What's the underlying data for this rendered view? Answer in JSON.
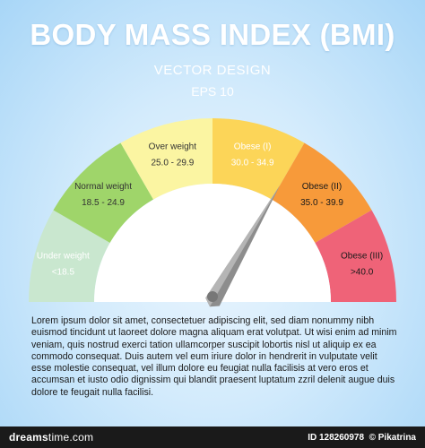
{
  "header": {
    "title": "BODY MASS INDEX (BMI)",
    "subtitle": "VECTOR DESIGN",
    "eps": "EPS 10"
  },
  "gauge": {
    "needle_value": 30,
    "range": [
      0,
      45
    ],
    "segments": [
      {
        "name": "Under weight",
        "range": "<18.5",
        "color": "#c9e7cf",
        "text_color": "#ffffff"
      },
      {
        "name": "Normal weight",
        "range": "18.5 - 24.9",
        "color": "#9fd56a",
        "text_color": "#333333"
      },
      {
        "name": "Over weight",
        "range": "25.0 - 29.9",
        "color": "#fbf5a2",
        "text_color": "#333333"
      },
      {
        "name": "Obese (I)",
        "range": "30.0 - 34.9",
        "color": "#fcd558",
        "text_color": "#ffffff"
      },
      {
        "name": "Obese (II)",
        "range": "35.0 - 39.9",
        "color": "#f79a3a",
        "text_color": "#1a1a1a"
      },
      {
        "name": "Obese (III)",
        "range": ">40.0",
        "color": "#ef6378",
        "text_color": "#1a1a1a"
      }
    ]
  },
  "body_text": "Lorem ipsum dolor sit amet, consectetuer adipiscing elit, sed diam nonummy nibh euismod tincidunt ut laoreet dolore magna aliquam erat volutpat. Ut wisi enim ad minim veniam, quis nostrud exerci tation ullamcorper suscipit lobortis nisl ut aliquip ex ea commodo consequat. Duis autem vel eum iriure dolor in hendrerit in vulputate velit esse molestie consequat, vel illum dolore eu feugiat nulla facilisis at vero eros et accumsan et iusto odio dignissim qui blandit praesent luptatum zzril delenit augue duis dolore te feugait nulla facilisi.",
  "footer": {
    "brand_bold": "dreams",
    "brand_light": "time.com",
    "id_label": "ID",
    "id_value": "128260978",
    "author": "© Pikatrina"
  }
}
